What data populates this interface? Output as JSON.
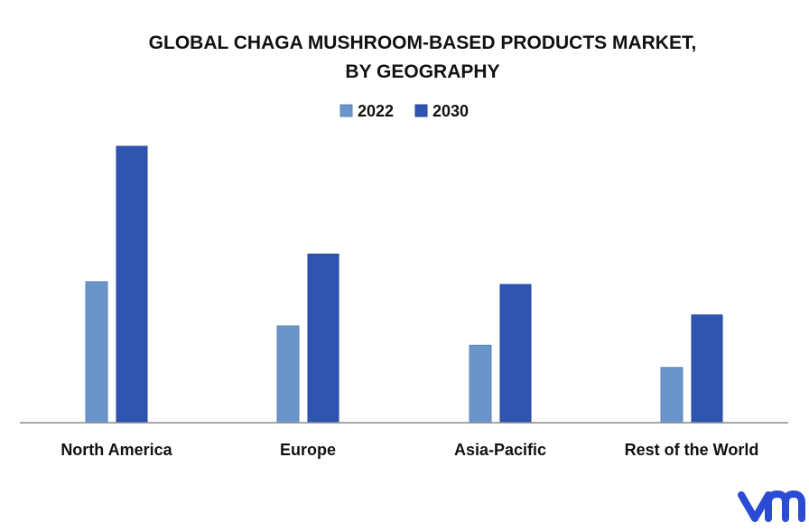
{
  "chart_data": {
    "type": "bar",
    "title_lines": [
      "GLOBAL CHAGA MUSHROOM-BASED PRODUCTS MARKET,",
      "BY GEOGRAPHY"
    ],
    "categories": [
      "North America",
      "Europe",
      "Asia-Pacific",
      "Rest of the World"
    ],
    "series": [
      {
        "name": "2022",
        "values": [
          5.1,
          3.5,
          2.8,
          2.0
        ],
        "color": "#6a95cb",
        "edge": "#5a84ba"
      },
      {
        "name": "2030",
        "values": [
          10.0,
          6.1,
          5.0,
          3.9
        ],
        "color": "#2f55b0",
        "edge": "#23459a"
      }
    ],
    "ylim": [
      0,
      10
    ],
    "xlabel": "",
    "ylabel": "",
    "grid": false,
    "legend_position": "top-center",
    "axis_color": "#8c8c8c"
  },
  "logo": {
    "text": "vm",
    "color": "#2a4bd3"
  }
}
